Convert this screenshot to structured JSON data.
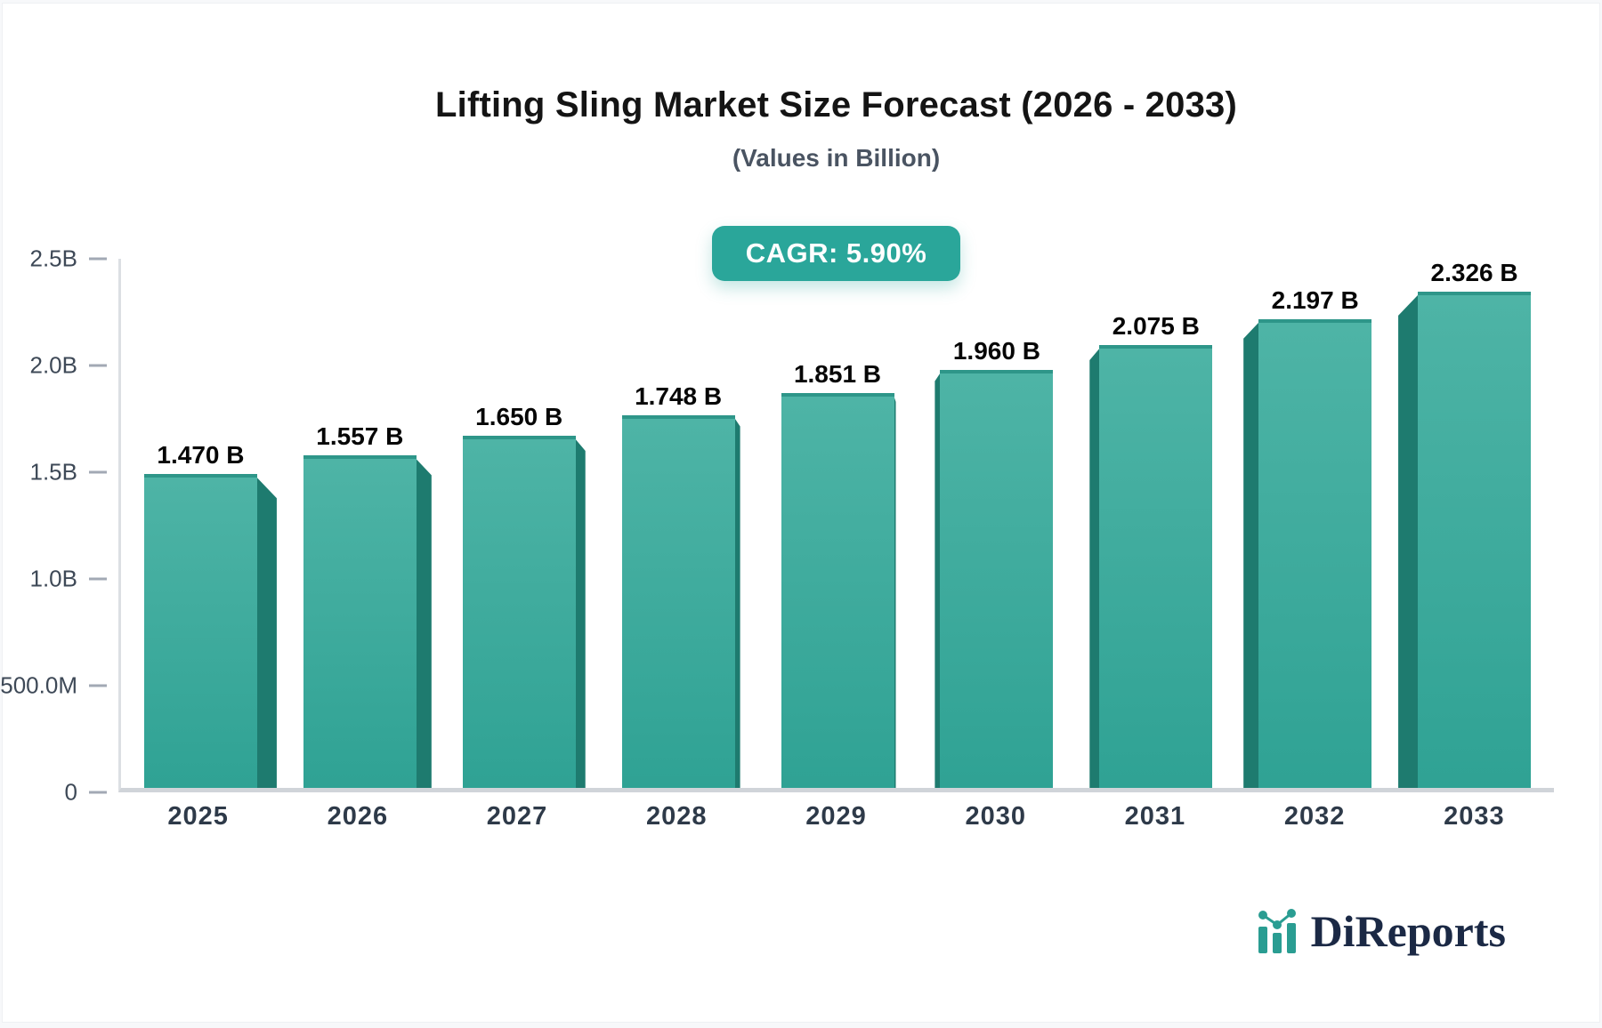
{
  "header": {
    "title": "Lifting Sling Market Size Forecast (2026 - 2033)",
    "subtitle": "(Values in Billion)",
    "cagr_label": "CAGR: 5.90%"
  },
  "chart_data": {
    "type": "bar",
    "title": "Lifting Sling Market Size Forecast (2026 - 2033)",
    "subtitle": "(Values in Billion)",
    "cagr_percent": 5.9,
    "categories": [
      "2025",
      "2026",
      "2027",
      "2028",
      "2029",
      "2030",
      "2031",
      "2032",
      "2033"
    ],
    "values": [
      1.47,
      1.557,
      1.65,
      1.748,
      1.851,
      1.96,
      2.075,
      2.197,
      2.326
    ],
    "value_labels": [
      "1.470 B",
      "1.557 B",
      "1.650 B",
      "1.748 B",
      "1.851 B",
      "1.960 B",
      "2.075 B",
      "2.197 B",
      "2.326 B"
    ],
    "unit": "Billion",
    "xlabel": "",
    "ylabel": "",
    "ylim": [
      0,
      2.5
    ],
    "grid": false,
    "legend": "none",
    "y_ticks": [
      {
        "label": "2.5B",
        "value": 2.5
      },
      {
        "label": "2.0B",
        "value": 2.0
      },
      {
        "label": "1.5B",
        "value": 1.5
      },
      {
        "label": "1.0B",
        "value": 1.0
      },
      {
        "label": "500.0M",
        "value": 0.5
      },
      {
        "label": "0",
        "value": 0
      }
    ]
  },
  "colors": {
    "accent": "#2aa69a",
    "bar-top": "#4eb4a6",
    "bar-bottom": "#2fa294",
    "bar-edge": "#2e9689",
    "bar-side": "#1e7b6f",
    "logo-teal": "#2a9d92",
    "logo-navy": "#1b2945"
  },
  "branding": {
    "logo_text": "DiReports"
  }
}
